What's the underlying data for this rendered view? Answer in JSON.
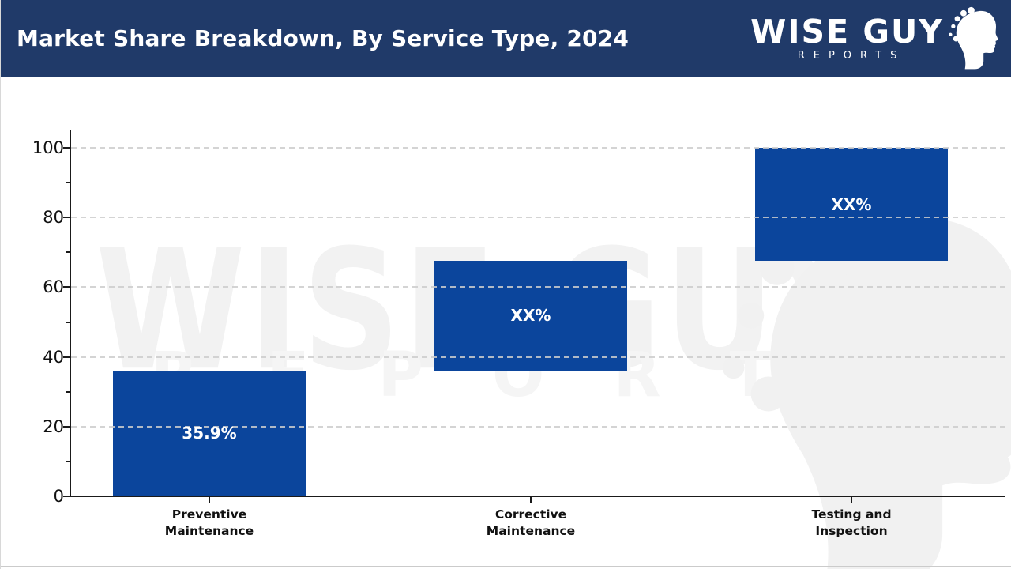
{
  "header": {
    "title": "Market Share Breakdown, By Service Type, 2024",
    "logo": {
      "line1": "WISE GUY",
      "line2": "REPORTS"
    },
    "bg_color": "#203a69"
  },
  "watermark": {
    "line1": "WISE GUY",
    "line2": "R E P O R T S"
  },
  "chart_data": {
    "type": "bar",
    "variant": "waterfall-cumulative",
    "title": "Market Share Breakdown, By Service Type, 2024",
    "categories": [
      "Preventive Maintenance",
      "Corrective Maintenance",
      "Testing and Inspection"
    ],
    "category_lines": [
      [
        "Preventive",
        "Maintenance"
      ],
      [
        "Corrective",
        "Maintenance"
      ],
      [
        "Testing and",
        "Inspection"
      ]
    ],
    "series": [
      {
        "category": "Preventive Maintenance",
        "start": 0,
        "end": 35.9,
        "value": 35.9,
        "label": "35.9%"
      },
      {
        "category": "Corrective Maintenance",
        "start": 35.9,
        "end": 67.4,
        "value": 31.5,
        "label": "XX%"
      },
      {
        "category": "Testing and Inspection",
        "start": 67.4,
        "end": 99.7,
        "value": 32.3,
        "label": "XX%"
      }
    ],
    "xlabel": "",
    "ylabel": "",
    "yticks": [
      0,
      20,
      40,
      60,
      80,
      100
    ],
    "minor_yticks": [
      10,
      30,
      50,
      70,
      90
    ],
    "ylim": [
      0,
      104.8
    ],
    "grid": {
      "axis": "y",
      "style": "dashed",
      "color": "#d9d9d9"
    },
    "bar_color": "#0b459c",
    "bar_label_color": "#ffffff",
    "legend": "none"
  }
}
